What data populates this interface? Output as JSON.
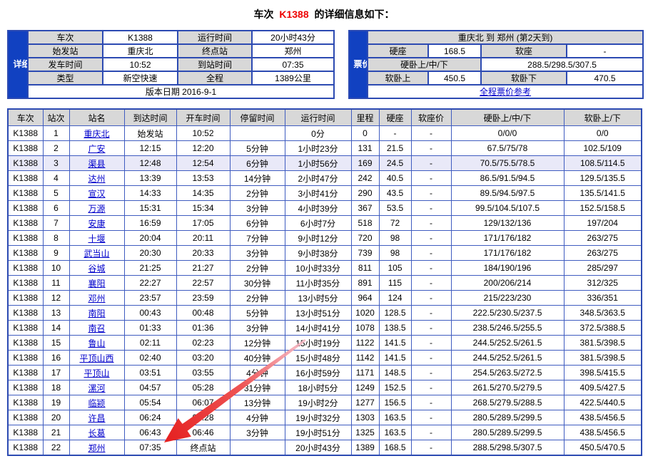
{
  "page": {
    "title_prefix": "车次",
    "title_train": "K1388",
    "title_suffix": "的详细信息如下："
  },
  "detail_panel": {
    "side_label": "详细情况",
    "rows": [
      {
        "l1": "车次",
        "v1": "K1388",
        "l2": "运行时间",
        "v2": "20小时43分"
      },
      {
        "l1": "始发站",
        "v1": "重庆北",
        "l2": "终点站",
        "v2": "郑州"
      },
      {
        "l1": "发车时间",
        "v1": "10:52",
        "l2": "到站时间",
        "v2": "07:35"
      },
      {
        "l1": "类型",
        "v1": "新空快速",
        "l2": "全程",
        "v2": "1389公里"
      }
    ],
    "version_label": "版本日期 2016-9-1"
  },
  "fare_panel": {
    "side_label": "票价信息",
    "route_header": "重庆北 到 郑州 (第2天到)",
    "hard_seat_label": "硬座",
    "hard_seat_value": "168.5",
    "soft_seat_label": "软座",
    "soft_seat_value": "-",
    "hard_sleeper_label": "硬卧上/中/下",
    "hard_sleeper_value": "288.5/298.5/307.5",
    "soft_sleeper_upper_label": "软卧上",
    "soft_sleeper_upper_value": "450.5",
    "soft_sleeper_lower_label": "软卧下",
    "soft_sleeper_lower_value": "470.5",
    "full_fare_link": "全程票价参考"
  },
  "schedule": {
    "headers": [
      "车次",
      "站次",
      "站名",
      "到达时间",
      "开车时间",
      "停留时间",
      "运行时间",
      "里程",
      "硬座",
      "软座价",
      "硬卧上/中/下",
      "软卧上/下"
    ],
    "header_keys": [
      "train-no",
      "stop-no",
      "station",
      "arrival-time",
      "departure-time",
      "stop-duration",
      "running-time",
      "distance",
      "hard-seat",
      "soft-seat-price",
      "hard-sleeper",
      "soft-sleeper"
    ],
    "highlight_row": 2,
    "rows": [
      [
        "K1388",
        "1",
        "重庆北",
        "始发站",
        "10:52",
        "",
        "0分",
        "0",
        "-",
        "-",
        "0/0/0",
        "0/0"
      ],
      [
        "K1388",
        "2",
        "广安",
        "12:15",
        "12:20",
        "5分钟",
        "1小时23分",
        "131",
        "21.5",
        "-",
        "67.5/75/78",
        "102.5/109"
      ],
      [
        "K1388",
        "3",
        "渠县",
        "12:48",
        "12:54",
        "6分钟",
        "1小时56分",
        "169",
        "24.5",
        "-",
        "70.5/75.5/78.5",
        "108.5/114.5"
      ],
      [
        "K1388",
        "4",
        "达州",
        "13:39",
        "13:53",
        "14分钟",
        "2小时47分",
        "242",
        "40.5",
        "-",
        "86.5/91.5/94.5",
        "129.5/135.5"
      ],
      [
        "K1388",
        "5",
        "宣汉",
        "14:33",
        "14:35",
        "2分钟",
        "3小时41分",
        "290",
        "43.5",
        "-",
        "89.5/94.5/97.5",
        "135.5/141.5"
      ],
      [
        "K1388",
        "6",
        "万源",
        "15:31",
        "15:34",
        "3分钟",
        "4小时39分",
        "367",
        "53.5",
        "-",
        "99.5/104.5/107.5",
        "152.5/158.5"
      ],
      [
        "K1388",
        "7",
        "安康",
        "16:59",
        "17:05",
        "6分钟",
        "6小时7分",
        "518",
        "72",
        "-",
        "129/132/136",
        "197/204"
      ],
      [
        "K1388",
        "8",
        "十堰",
        "20:04",
        "20:11",
        "7分钟",
        "9小时12分",
        "720",
        "98",
        "-",
        "171/176/182",
        "263/275"
      ],
      [
        "K1388",
        "9",
        "武当山",
        "20:30",
        "20:33",
        "3分钟",
        "9小时38分",
        "739",
        "98",
        "-",
        "171/176/182",
        "263/275"
      ],
      [
        "K1388",
        "10",
        "谷城",
        "21:25",
        "21:27",
        "2分钟",
        "10小时33分",
        "811",
        "105",
        "-",
        "184/190/196",
        "285/297"
      ],
      [
        "K1388",
        "11",
        "襄阳",
        "22:27",
        "22:57",
        "30分钟",
        "11小时35分",
        "891",
        "115",
        "-",
        "200/206/214",
        "312/325"
      ],
      [
        "K1388",
        "12",
        "邓州",
        "23:57",
        "23:59",
        "2分钟",
        "13小时5分",
        "964",
        "124",
        "-",
        "215/223/230",
        "336/351"
      ],
      [
        "K1388",
        "13",
        "南阳",
        "00:43",
        "00:48",
        "5分钟",
        "13小时51分",
        "1020",
        "128.5",
        "-",
        "222.5/230.5/237.5",
        "348.5/363.5"
      ],
      [
        "K1388",
        "14",
        "南召",
        "01:33",
        "01:36",
        "3分钟",
        "14小时41分",
        "1078",
        "138.5",
        "-",
        "238.5/246.5/255.5",
        "372.5/388.5"
      ],
      [
        "K1388",
        "15",
        "鲁山",
        "02:11",
        "02:23",
        "12分钟",
        "15小时19分",
        "1122",
        "141.5",
        "-",
        "244.5/252.5/261.5",
        "381.5/398.5"
      ],
      [
        "K1388",
        "16",
        "平顶山西",
        "02:40",
        "03:20",
        "40分钟",
        "15小时48分",
        "1142",
        "141.5",
        "-",
        "244.5/252.5/261.5",
        "381.5/398.5"
      ],
      [
        "K1388",
        "17",
        "平顶山",
        "03:51",
        "03:55",
        "4分钟",
        "16小时59分",
        "1171",
        "148.5",
        "-",
        "254.5/263.5/272.5",
        "398.5/415.5"
      ],
      [
        "K1388",
        "18",
        "漯河",
        "04:57",
        "05:28",
        "31分钟",
        "18小时5分",
        "1249",
        "152.5",
        "-",
        "261.5/270.5/279.5",
        "409.5/427.5"
      ],
      [
        "K1388",
        "19",
        "临颍",
        "05:54",
        "06:07",
        "13分钟",
        "19小时2分",
        "1277",
        "156.5",
        "-",
        "268.5/279.5/288.5",
        "422.5/440.5"
      ],
      [
        "K1388",
        "20",
        "许昌",
        "06:24",
        "06:28",
        "4分钟",
        "19小时32分",
        "1303",
        "163.5",
        "-",
        "280.5/289.5/299.5",
        "438.5/456.5"
      ],
      [
        "K1388",
        "21",
        "长葛",
        "06:43",
        "06:46",
        "3分钟",
        "19小时51分",
        "1325",
        "163.5",
        "-",
        "280.5/289.5/299.5",
        "438.5/456.5"
      ],
      [
        "K1388",
        "22",
        "郑州",
        "07:35",
        "终点站",
        "",
        "20小时43分",
        "1389",
        "168.5",
        "-",
        "288.5/298.5/307.5",
        "450.5/470.5"
      ]
    ]
  },
  "colors": {
    "accent_blue": "#1141c1",
    "border_blue": "#2c4ab2",
    "header_cell_bg": "#d8d8d8",
    "highlight_row_bg": "#e9e9f8",
    "link_blue": "#0000cc",
    "train_no_red": "#ee0000",
    "arrow_red": "#e51f1f"
  }
}
